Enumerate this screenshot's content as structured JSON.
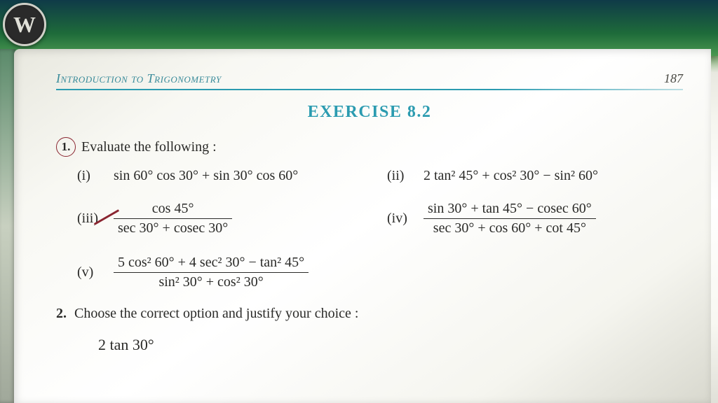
{
  "logo_letter": "W",
  "header": {
    "chapter_title": "Introduction to Trigonometry",
    "page_number": "187",
    "divider_color": "#2b9bb0"
  },
  "exercise": {
    "title": "EXERCISE 8.2",
    "title_color": "#2b9bb0",
    "title_fontsize": 24
  },
  "q1": {
    "number": "1.",
    "text": "Evaluate the following :",
    "circle_border_color": "#8a2530",
    "items": {
      "i": {
        "label": "(i)",
        "expr": "sin 60° cos 30° + sin 30° cos 60°"
      },
      "ii": {
        "label": "(ii)",
        "expr": "2 tan² 45° + cos² 30° − sin² 60°"
      },
      "iii": {
        "label": "(iii)",
        "num": "cos 45°",
        "den": "sec 30° + cosec 30°"
      },
      "iv": {
        "label": "(iv)",
        "num": "sin 30° + tan 45° − cosec 60°",
        "den": "sec 30° + cos 60° + cot 45°"
      },
      "v": {
        "label": "(v)",
        "num": "5 cos² 60° + 4 sec² 30° − tan² 45°",
        "den": "sin² 30° + cos² 30°"
      }
    }
  },
  "q2": {
    "number": "2.",
    "text": "Choose the correct option and justify your choice :",
    "trailing": "2 tan 30°"
  },
  "colors": {
    "text": "#2a2a28",
    "accent": "#8a2530",
    "teal": "#2b9bb0",
    "page_bg": "#f5f5ef"
  }
}
